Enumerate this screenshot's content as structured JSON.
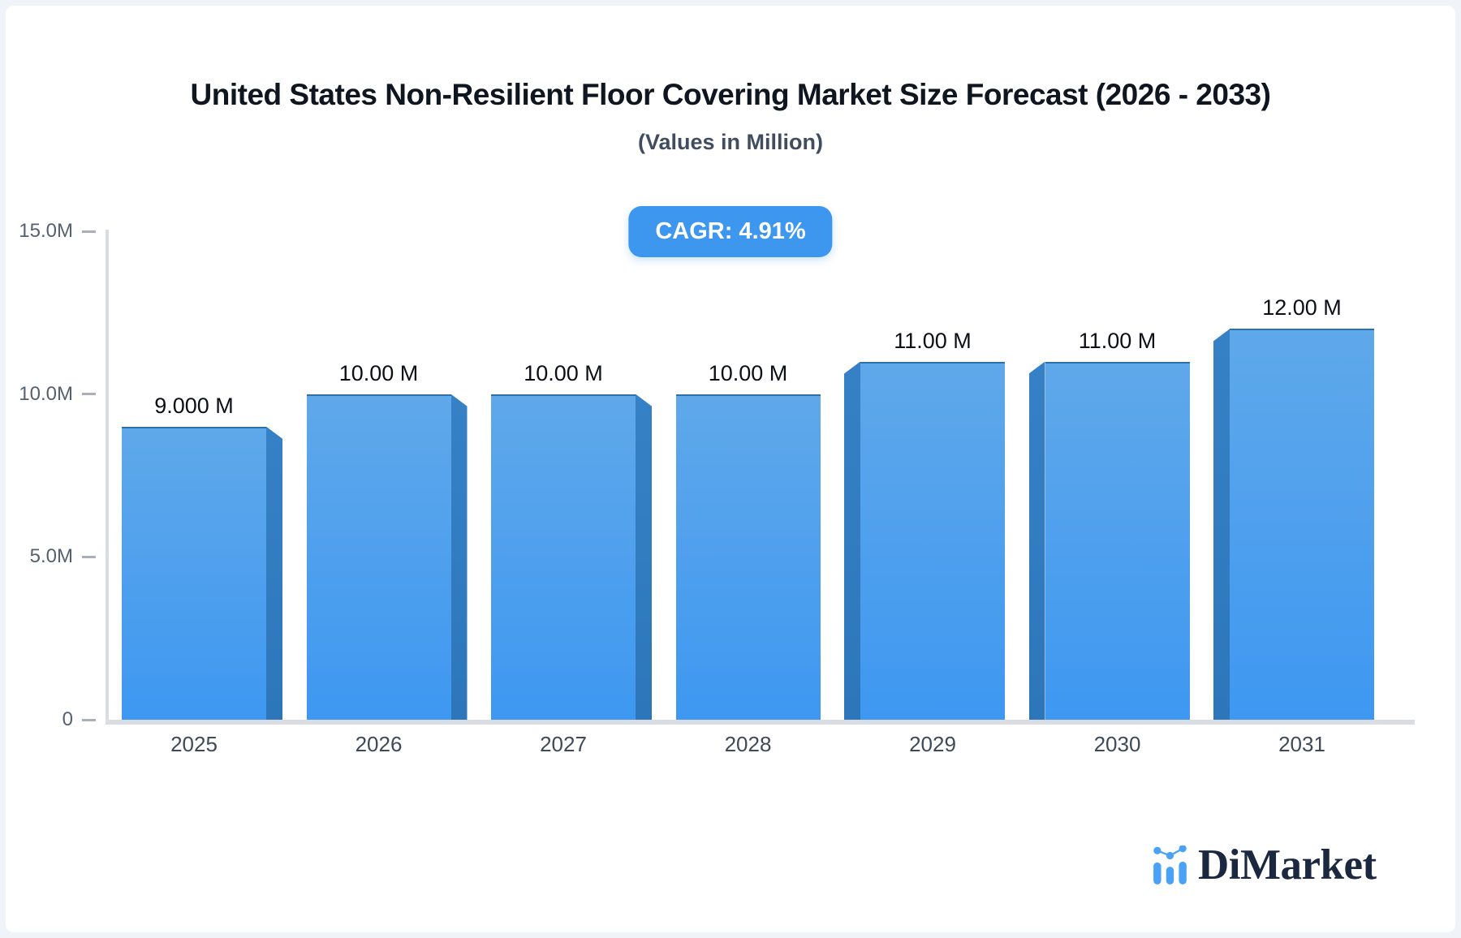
{
  "header": {
    "title": "United States Non-Resilient Floor Covering Market Size Forecast (2026 - 2033)",
    "subtitle": "(Values in Million)",
    "cagr_badge": "CAGR: 4.91%"
  },
  "brand": {
    "name": "DiMarket",
    "icon": "mini-bar-chart-logo-icon"
  },
  "colors": {
    "accent_blue": "#3d97ef",
    "badge_text": "#ffffff",
    "bar_face_top": "#5fa8ea",
    "bar_face_bottom": "#3e98f1",
    "bar_face_edge": "#2e70ab",
    "bar_side_top": "#3681c6",
    "bar_side_bottom": "#2d76ba",
    "axis_line": "#d9dde3",
    "tick_dash": "#a9b0ba",
    "axis_label": "#566170",
    "year_label": "#3f4a59",
    "value_label": "#0c1016",
    "title_text": "#10161f",
    "subtitle_text": "#414d5f",
    "logo_text": "#1b2840",
    "logo_icon": "#4aa2f6",
    "page_frame": "#f0f3f7",
    "card_background": "#ffffff"
  },
  "chart_data": {
    "type": "bar",
    "title": "United States Non-Resilient Floor Covering Market Size Forecast (2026 - 2033)",
    "subtitle": "(Values in Million)",
    "unit": "Million",
    "cagr_percent": 4.91,
    "categories": [
      "2025",
      "2026",
      "2027",
      "2028",
      "2029",
      "2030",
      "2031"
    ],
    "values": [
      9,
      10,
      10,
      10,
      11,
      11,
      12
    ],
    "value_labels": [
      "9.000 M",
      "10.00 M",
      "10.00 M",
      "10.00 M",
      "11.00 M",
      "11.00 M",
      "12.00 M"
    ],
    "ylim": [
      0,
      15
    ],
    "yticks": [
      {
        "value": 0,
        "label": "0"
      },
      {
        "value": 5,
        "label": "5.0M"
      },
      {
        "value": 10,
        "label": "10.0M"
      },
      {
        "value": 15,
        "label": "15.0M"
      }
    ],
    "grid": false,
    "legend": false,
    "bar_style": "3d-perspective"
  }
}
